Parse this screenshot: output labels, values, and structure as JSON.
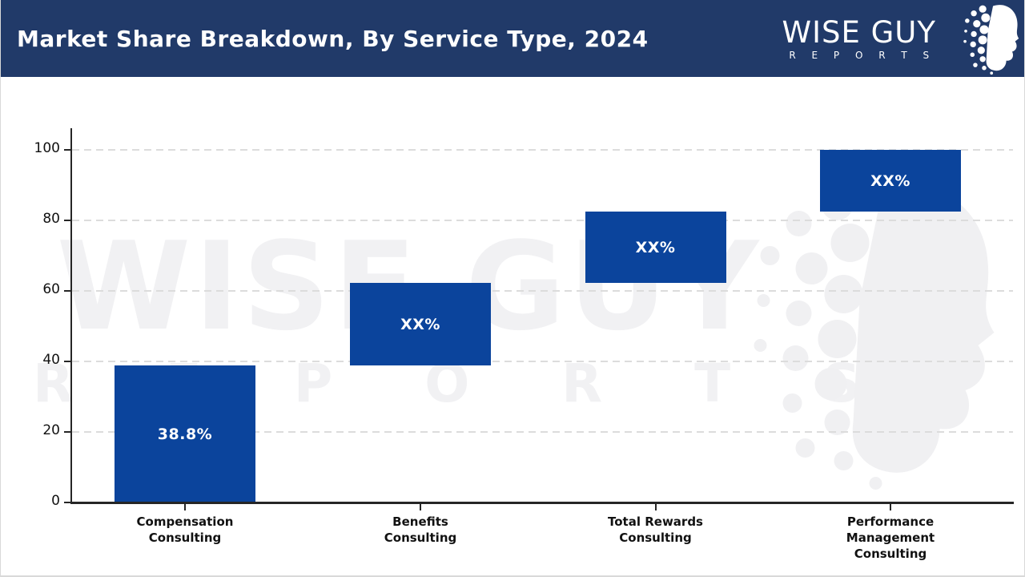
{
  "header": {
    "title": "Market Share Breakdown, By Service Type, 2024",
    "bg_color": "#213A69",
    "logo": {
      "name": "WISE GUY",
      "sub": "R E P O R T S"
    }
  },
  "watermark": {
    "line1": "WISE GUY",
    "line2": "R E P O R T S"
  },
  "chart_data": {
    "type": "bar",
    "subtype": "waterfall",
    "title": "Market Share Breakdown, By Service Type, 2024",
    "categories": [
      [
        "Compensation",
        "Consulting"
      ],
      [
        "Benefits",
        "Consulting"
      ],
      [
        "Total Rewards",
        "Consulting"
      ],
      [
        "Performance",
        "Management",
        "Consulting"
      ]
    ],
    "segments": [
      {
        "label": "38.8%",
        "start": 0,
        "end": 38.8
      },
      {
        "label": "XX%",
        "start": 38.8,
        "end": 62.2
      },
      {
        "label": "XX%",
        "start": 62.2,
        "end": 82.4
      },
      {
        "label": "XX%",
        "start": 82.4,
        "end": 100
      }
    ],
    "ylim": [
      0,
      100
    ],
    "yticks": [
      0,
      20,
      40,
      60,
      80,
      100
    ],
    "xlabel": "",
    "ylabel": "",
    "grid": "dashed-horizontal",
    "legend": "none",
    "bar_color": "#0B449C",
    "bar_label_color": "#FFFFFF"
  }
}
